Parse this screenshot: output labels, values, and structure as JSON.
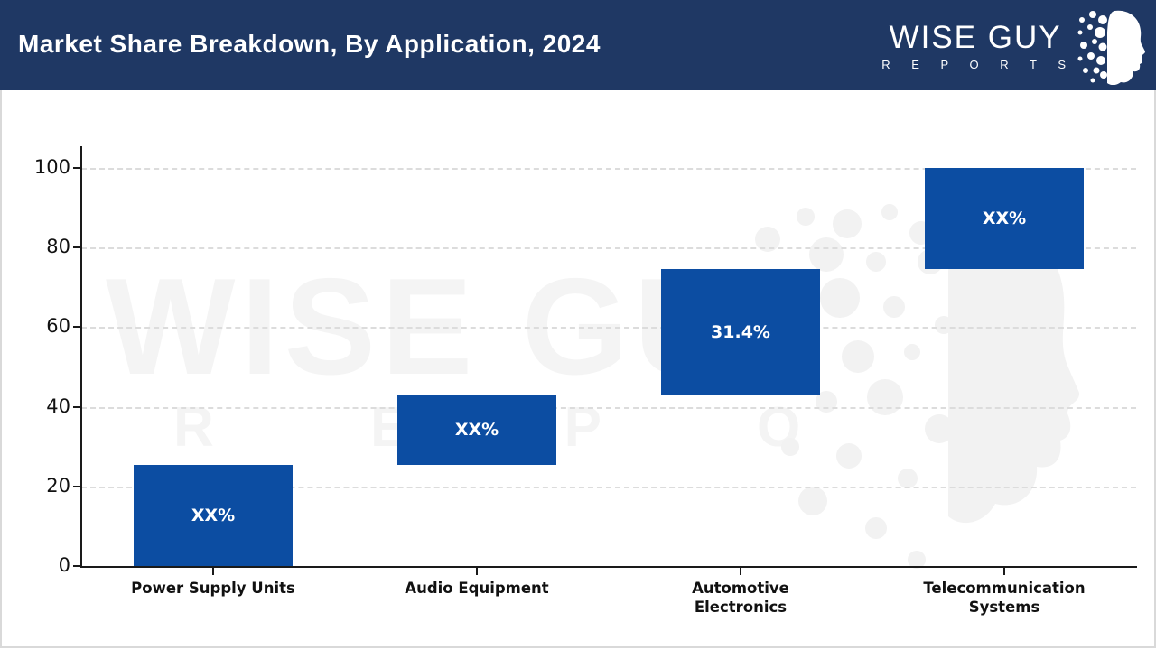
{
  "header": {
    "title": "Market Share Breakdown, By Application, 2024",
    "bg_color": "#1f3864",
    "logo": {
      "line1": "WISE GUY",
      "line2": "R E P O R T S"
    }
  },
  "watermark": {
    "line1": "WISE GU",
    "line2": "R E P O R T S"
  },
  "chart_data": {
    "type": "bar",
    "subtype": "waterfall",
    "title": "Market Share Breakdown, By Application, 2024",
    "categories": [
      "Power Supply Units",
      "Audio Equipment",
      "Automotive Electronics",
      "Telecommunication Systems"
    ],
    "category_lines": [
      [
        "Power Supply Units"
      ],
      [
        "Audio Equipment"
      ],
      [
        "Automotive",
        "Electronics"
      ],
      [
        "Telecommunication",
        "Systems"
      ]
    ],
    "segments": [
      {
        "category": "Power Supply Units",
        "start": 0,
        "end": 25.4,
        "value": 25.4,
        "label": "XX%"
      },
      {
        "category": "Audio Equipment",
        "start": 25.4,
        "end": 43.1,
        "value": 17.7,
        "label": "XX%"
      },
      {
        "category": "Automotive Electronics",
        "start": 43.1,
        "end": 74.5,
        "value": 31.4,
        "label": "31.4%"
      },
      {
        "category": "Telecommunication Systems",
        "start": 74.5,
        "end": 100,
        "value": 25.5,
        "label": "XX%"
      }
    ],
    "yticks": [
      0,
      20,
      40,
      60,
      80,
      100
    ],
    "ylim": [
      0,
      100
    ],
    "xlabel": "",
    "ylabel": "",
    "grid": "dashed-horizontal",
    "legend": "none",
    "bar_color": "#0c4da2",
    "bar_label_color": "#ffffff",
    "axis_color": "#1a1a1a"
  }
}
